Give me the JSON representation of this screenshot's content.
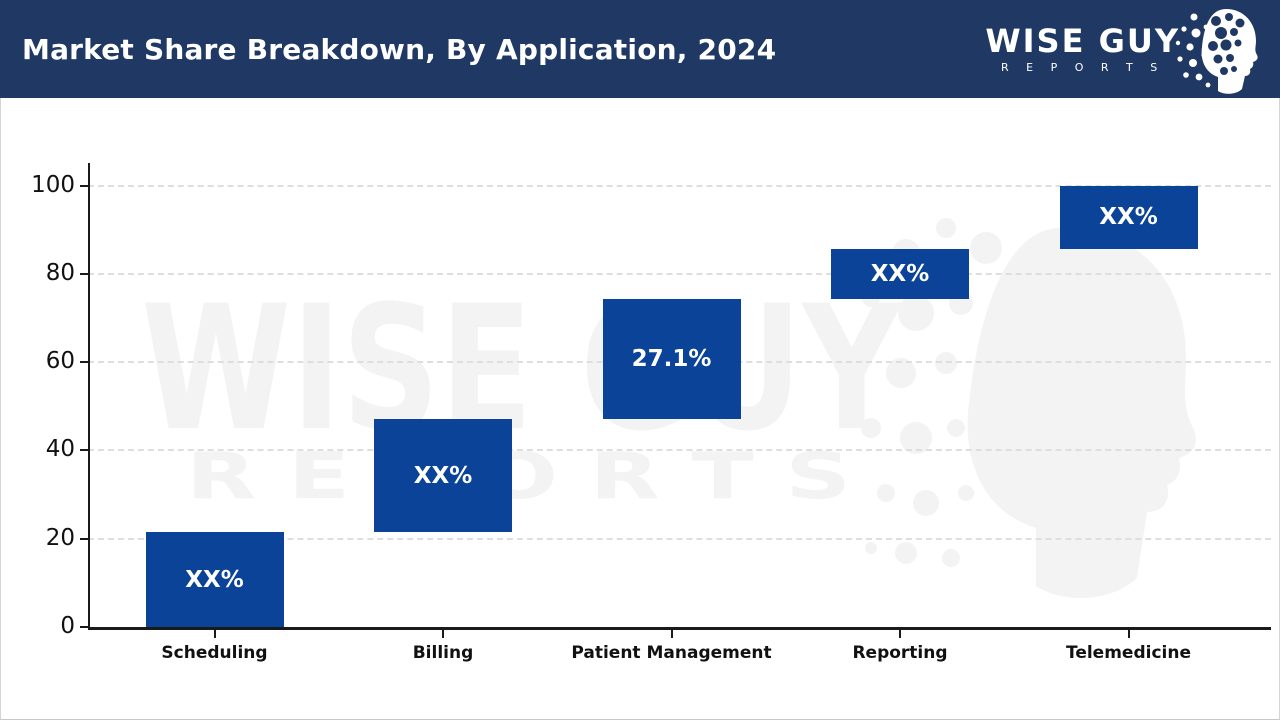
{
  "header": {
    "title": "Market Share Breakdown, By Application, 2024",
    "background": "#1f3864",
    "logo": {
      "wordmark": "WISE GUY",
      "subtext": "R E P O R T S"
    }
  },
  "watermark": {
    "wordmark": "WISE GUY",
    "subtext": "R E P O R T S"
  },
  "chart_data": {
    "type": "bar",
    "subtype": "floating-waterfall",
    "title": "Market Share Breakdown, By Application, 2024",
    "xlabel": "",
    "ylabel": "",
    "ylim": [
      0,
      100
    ],
    "yticks": [
      0,
      20,
      40,
      60,
      80,
      100
    ],
    "grid": "horizontal-dashed",
    "bar_color": "#0a4398",
    "bar_label_color": "#ffffff",
    "categories": [
      "Scheduling",
      "Billing",
      "Patient Management",
      "Reporting",
      "Telemedicine"
    ],
    "bars": [
      {
        "category": "Scheduling",
        "start": 0,
        "end": 21.5,
        "label": "XX%"
      },
      {
        "category": "Billing",
        "start": 21.5,
        "end": 47.1,
        "label": "XX%"
      },
      {
        "category": "Patient Management",
        "start": 47.1,
        "end": 74.2,
        "label": "27.1%"
      },
      {
        "category": "Reporting",
        "start": 74.2,
        "end": 85.6,
        "label": "XX%"
      },
      {
        "category": "Telemedicine",
        "start": 85.6,
        "end": 100,
        "label": "XX%"
      }
    ]
  }
}
